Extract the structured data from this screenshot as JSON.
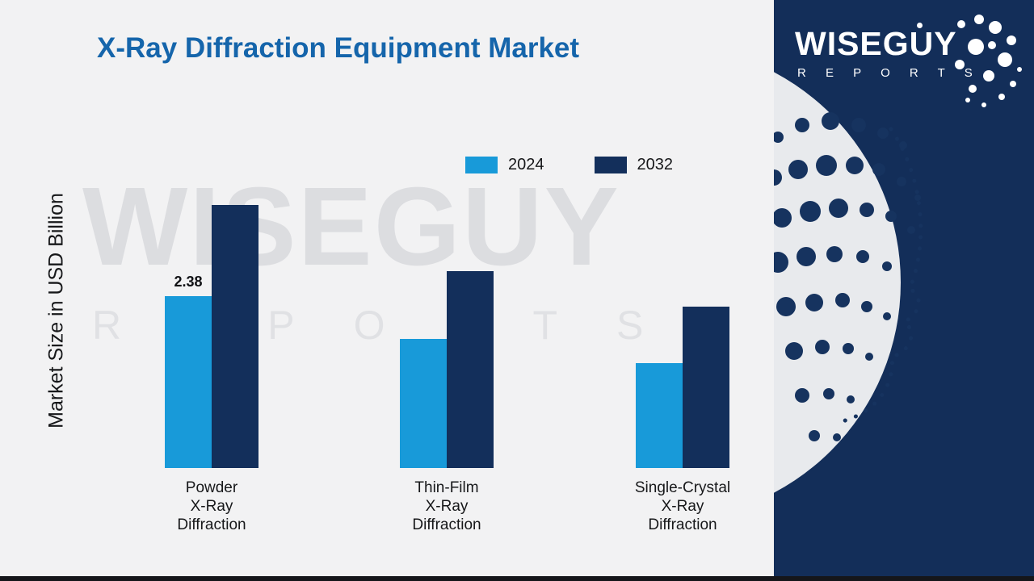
{
  "brand": {
    "logo_line1": "WISEGUY",
    "logo_line2": "R E P O R T S",
    "watermark_line1": "WISEGUY",
    "watermark_line2": "R E P O R T S"
  },
  "colors": {
    "title_blue": "#1565ab",
    "series_2024_blue": "#189ad9",
    "series_2032_navy": "#132f5b",
    "panel_navy": "#132e59"
  },
  "chart_data": {
    "type": "bar",
    "title": "X-Ray Diffraction Equipment Market",
    "ylabel": "Market Size in USD Billion",
    "xlabel": "",
    "categories": [
      [
        "Powder",
        "X-Ray",
        "Diffraction"
      ],
      [
        "Thin-Film",
        "X-Ray",
        "Diffraction"
      ],
      [
        "Single-Crystal",
        "X-Ray",
        "Diffraction"
      ]
    ],
    "series": [
      {
        "name": "2024",
        "color": "#189ad9",
        "values": [
          2.38,
          1.79,
          1.45
        ],
        "data_labels": [
          "2.38",
          "",
          ""
        ]
      },
      {
        "name": "2032",
        "color": "#132f5b",
        "values": [
          3.64,
          2.73,
          2.23
        ],
        "data_labels": [
          "",
          "",
          ""
        ]
      }
    ],
    "ylim": [
      0,
      4
    ],
    "grid": false,
    "legend_position": "top"
  }
}
